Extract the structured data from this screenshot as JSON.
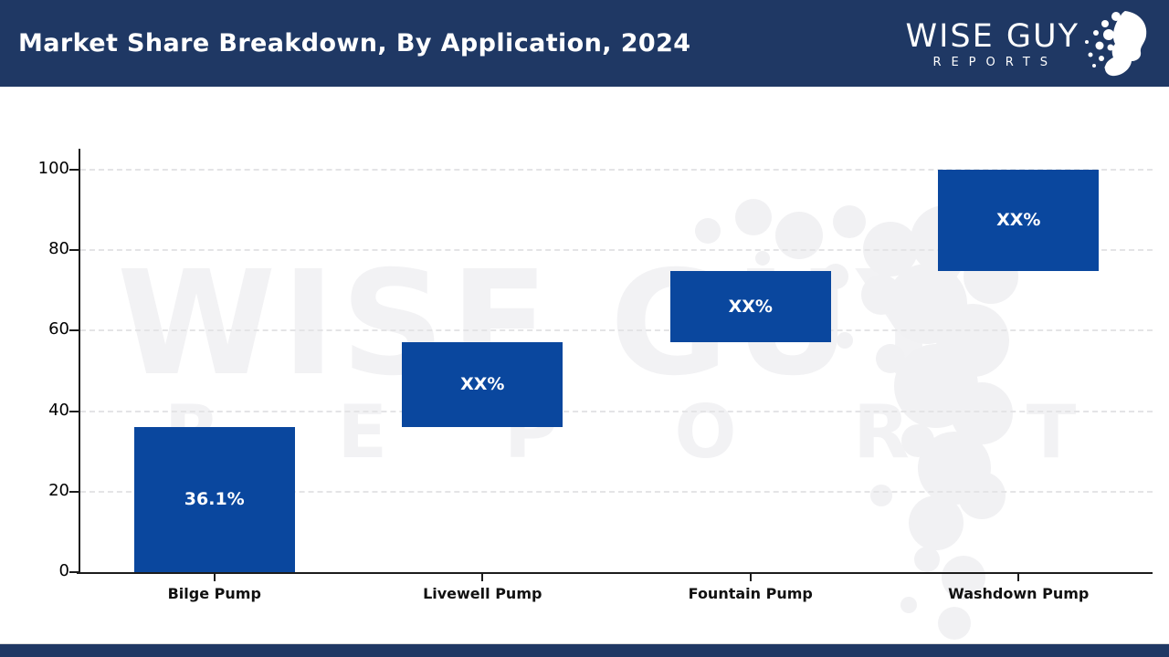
{
  "header": {
    "title": "Market Share Breakdown, By Application, 2024",
    "background_color": "#1f3864",
    "logo": {
      "line1": "WISE GUY",
      "line2": "REPORTS"
    }
  },
  "watermark": {
    "line1": "WISE GUY",
    "line2": "R E P O R T S"
  },
  "chart_data": {
    "type": "bar",
    "variant": "waterfall",
    "title": "Market Share Breakdown, By Application, 2024",
    "categories": [
      "Bilge Pump",
      "Livewell Pump",
      "Fountain Pump",
      "Washdown Pump"
    ],
    "series": [
      {
        "name": "Market Share",
        "segments": [
          {
            "category": "Bilge Pump",
            "start": 0,
            "end": 36.1,
            "label": "36.1%"
          },
          {
            "category": "Livewell Pump",
            "start": 36.1,
            "end": 57.1,
            "label": "XX%"
          },
          {
            "category": "Fountain Pump",
            "start": 57.1,
            "end": 74.9,
            "label": "XX%"
          },
          {
            "category": "Washdown Pump",
            "start": 74.9,
            "end": 100,
            "label": "XX%"
          }
        ]
      }
    ],
    "xlabel": "",
    "ylabel": "",
    "yticks": [
      0,
      20,
      40,
      60,
      80,
      100
    ],
    "ylim": [
      0,
      105
    ],
    "grid": "horizontal-dashed",
    "gridline_color": "#e4e4e6",
    "axis_color": "#1c1c1c",
    "bar_color": "#0a479e",
    "bar_label_color": "#ffffff",
    "legend": "none"
  }
}
